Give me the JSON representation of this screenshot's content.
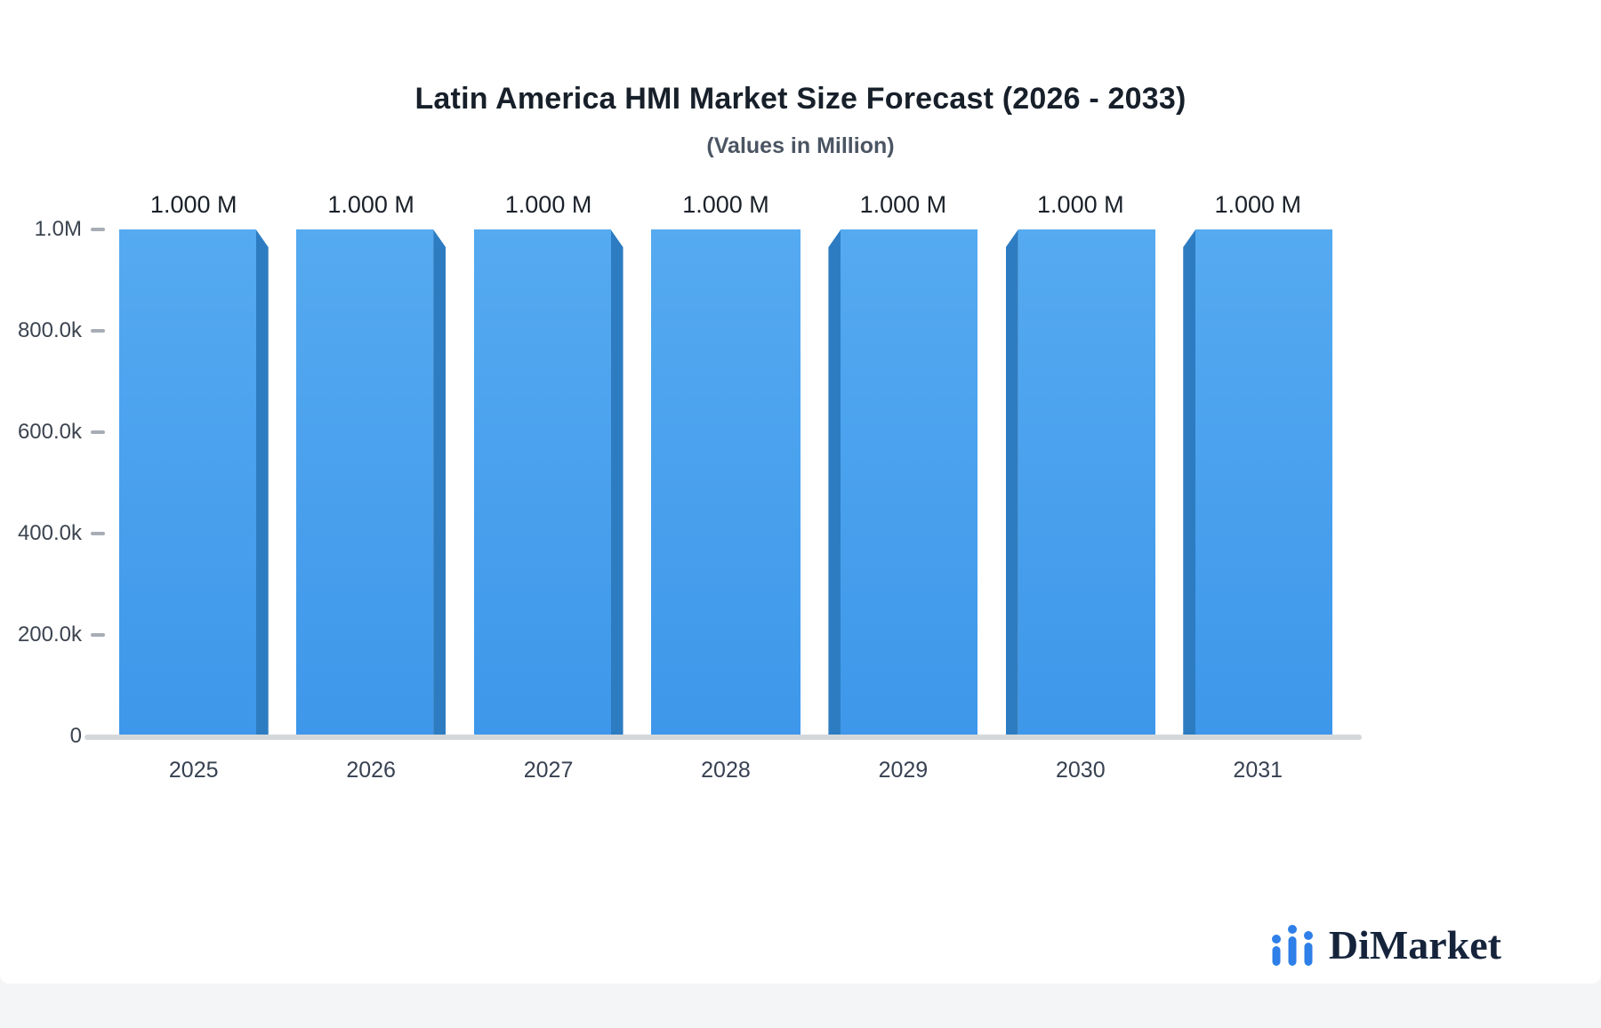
{
  "page": {
    "background": "#f3f5f7",
    "card_background": "#ffffff"
  },
  "header": {
    "title": "Latin America HMI Market Size Forecast (2026 - 2033)",
    "subtitle": "(Values in Million)"
  },
  "brand": {
    "name": "DiMarket",
    "icon": "bar-chart-logo-icon",
    "accent_color": "#2e7fe8",
    "text_color": "#15243b"
  },
  "chart_data": {
    "type": "bar",
    "title": "Latin America HMI Market Size Forecast (2026 - 2033)",
    "subtitle": "(Values in Million)",
    "categories": [
      "2025",
      "2026",
      "2027",
      "2028",
      "2029",
      "2030",
      "2031"
    ],
    "values": [
      1000000,
      1000000,
      1000000,
      1000000,
      1000000,
      1000000,
      1000000
    ],
    "bar_labels": [
      "1.000 M",
      "1.000 M",
      "1.000 M",
      "1.000 M",
      "1.000 M",
      "1.000 M",
      "1.000 M"
    ],
    "xlabel": "",
    "ylabel": "",
    "ylim": [
      0,
      1000000
    ],
    "y_ticks": [
      {
        "label": "0",
        "value": 0
      },
      {
        "label": "200.0k",
        "value": 200000
      },
      {
        "label": "400.0k",
        "value": 400000
      },
      {
        "label": "600.0k",
        "value": 600000
      },
      {
        "label": "800.0k",
        "value": 800000
      },
      {
        "label": "1.0M",
        "value": 1000000
      }
    ],
    "grid": false,
    "legend": false,
    "bar_color_top": "#55aaf0",
    "bar_color_bottom": "#3e97ea",
    "bar_edge_color": "#2d7cc2"
  }
}
